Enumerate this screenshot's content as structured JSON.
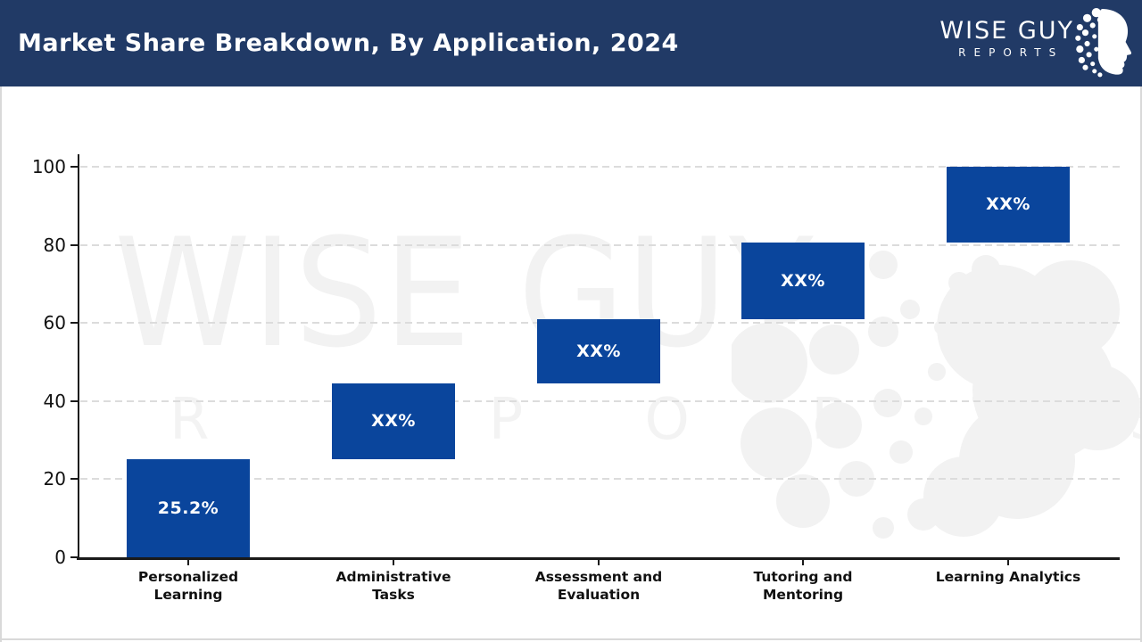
{
  "header": {
    "title": "Market Share Breakdown, By Application, 2024",
    "logo": {
      "line1": "WISE GUY",
      "line2": "REPORTS"
    }
  },
  "watermark": {
    "line1": "WISE GUY",
    "line2": "REPORTS"
  },
  "chart_data": {
    "type": "bar",
    "variant": "waterfall",
    "title": "Market Share Breakdown, By Application, 2024",
    "categories": [
      "Personalized Learning",
      "Administrative Tasks",
      "Assessment and Evaluation",
      "Tutoring and Mentoring",
      "Learning Analytics"
    ],
    "category_lines": [
      [
        "Personalized",
        "Learning"
      ],
      [
        "Administrative",
        "Tasks"
      ],
      [
        "Assessment and",
        "Evaluation"
      ],
      [
        "Tutoring and",
        "Mentoring"
      ],
      [
        "Learning Analytics"
      ]
    ],
    "segments": [
      {
        "category": "Personalized Learning",
        "label": "25.2%",
        "start": 0,
        "end": 25.2,
        "value": 25.2
      },
      {
        "category": "Administrative Tasks",
        "label": "XX%",
        "start": 25.2,
        "end": 44.5,
        "value": 19.3
      },
      {
        "category": "Assessment and Evaluation",
        "label": "XX%",
        "start": 44.5,
        "end": 61.0,
        "value": 16.5
      },
      {
        "category": "Tutoring and Mentoring",
        "label": "XX%",
        "start": 61.0,
        "end": 80.7,
        "value": 19.7
      },
      {
        "category": "Learning Analytics",
        "label": "XX%",
        "start": 80.7,
        "end": 100.0,
        "value": 19.3
      }
    ],
    "yticks": [
      0,
      20,
      40,
      60,
      80,
      100
    ],
    "ylim": [
      0,
      100
    ],
    "xlabel": "",
    "ylabel": "",
    "grid": "horizontal-dashed",
    "legend": "none",
    "bar_color": "#0A459C",
    "bar_label_color": "#ffffff",
    "axis_color": "#1a1a1a",
    "gridline_color": "#dcdcdc"
  },
  "colors": {
    "header_bg": "#213A66",
    "header_text": "#ffffff",
    "canvas_bg": "#ffffff",
    "watermark": "#f2f2f2",
    "border": "#d9d9d9"
  }
}
